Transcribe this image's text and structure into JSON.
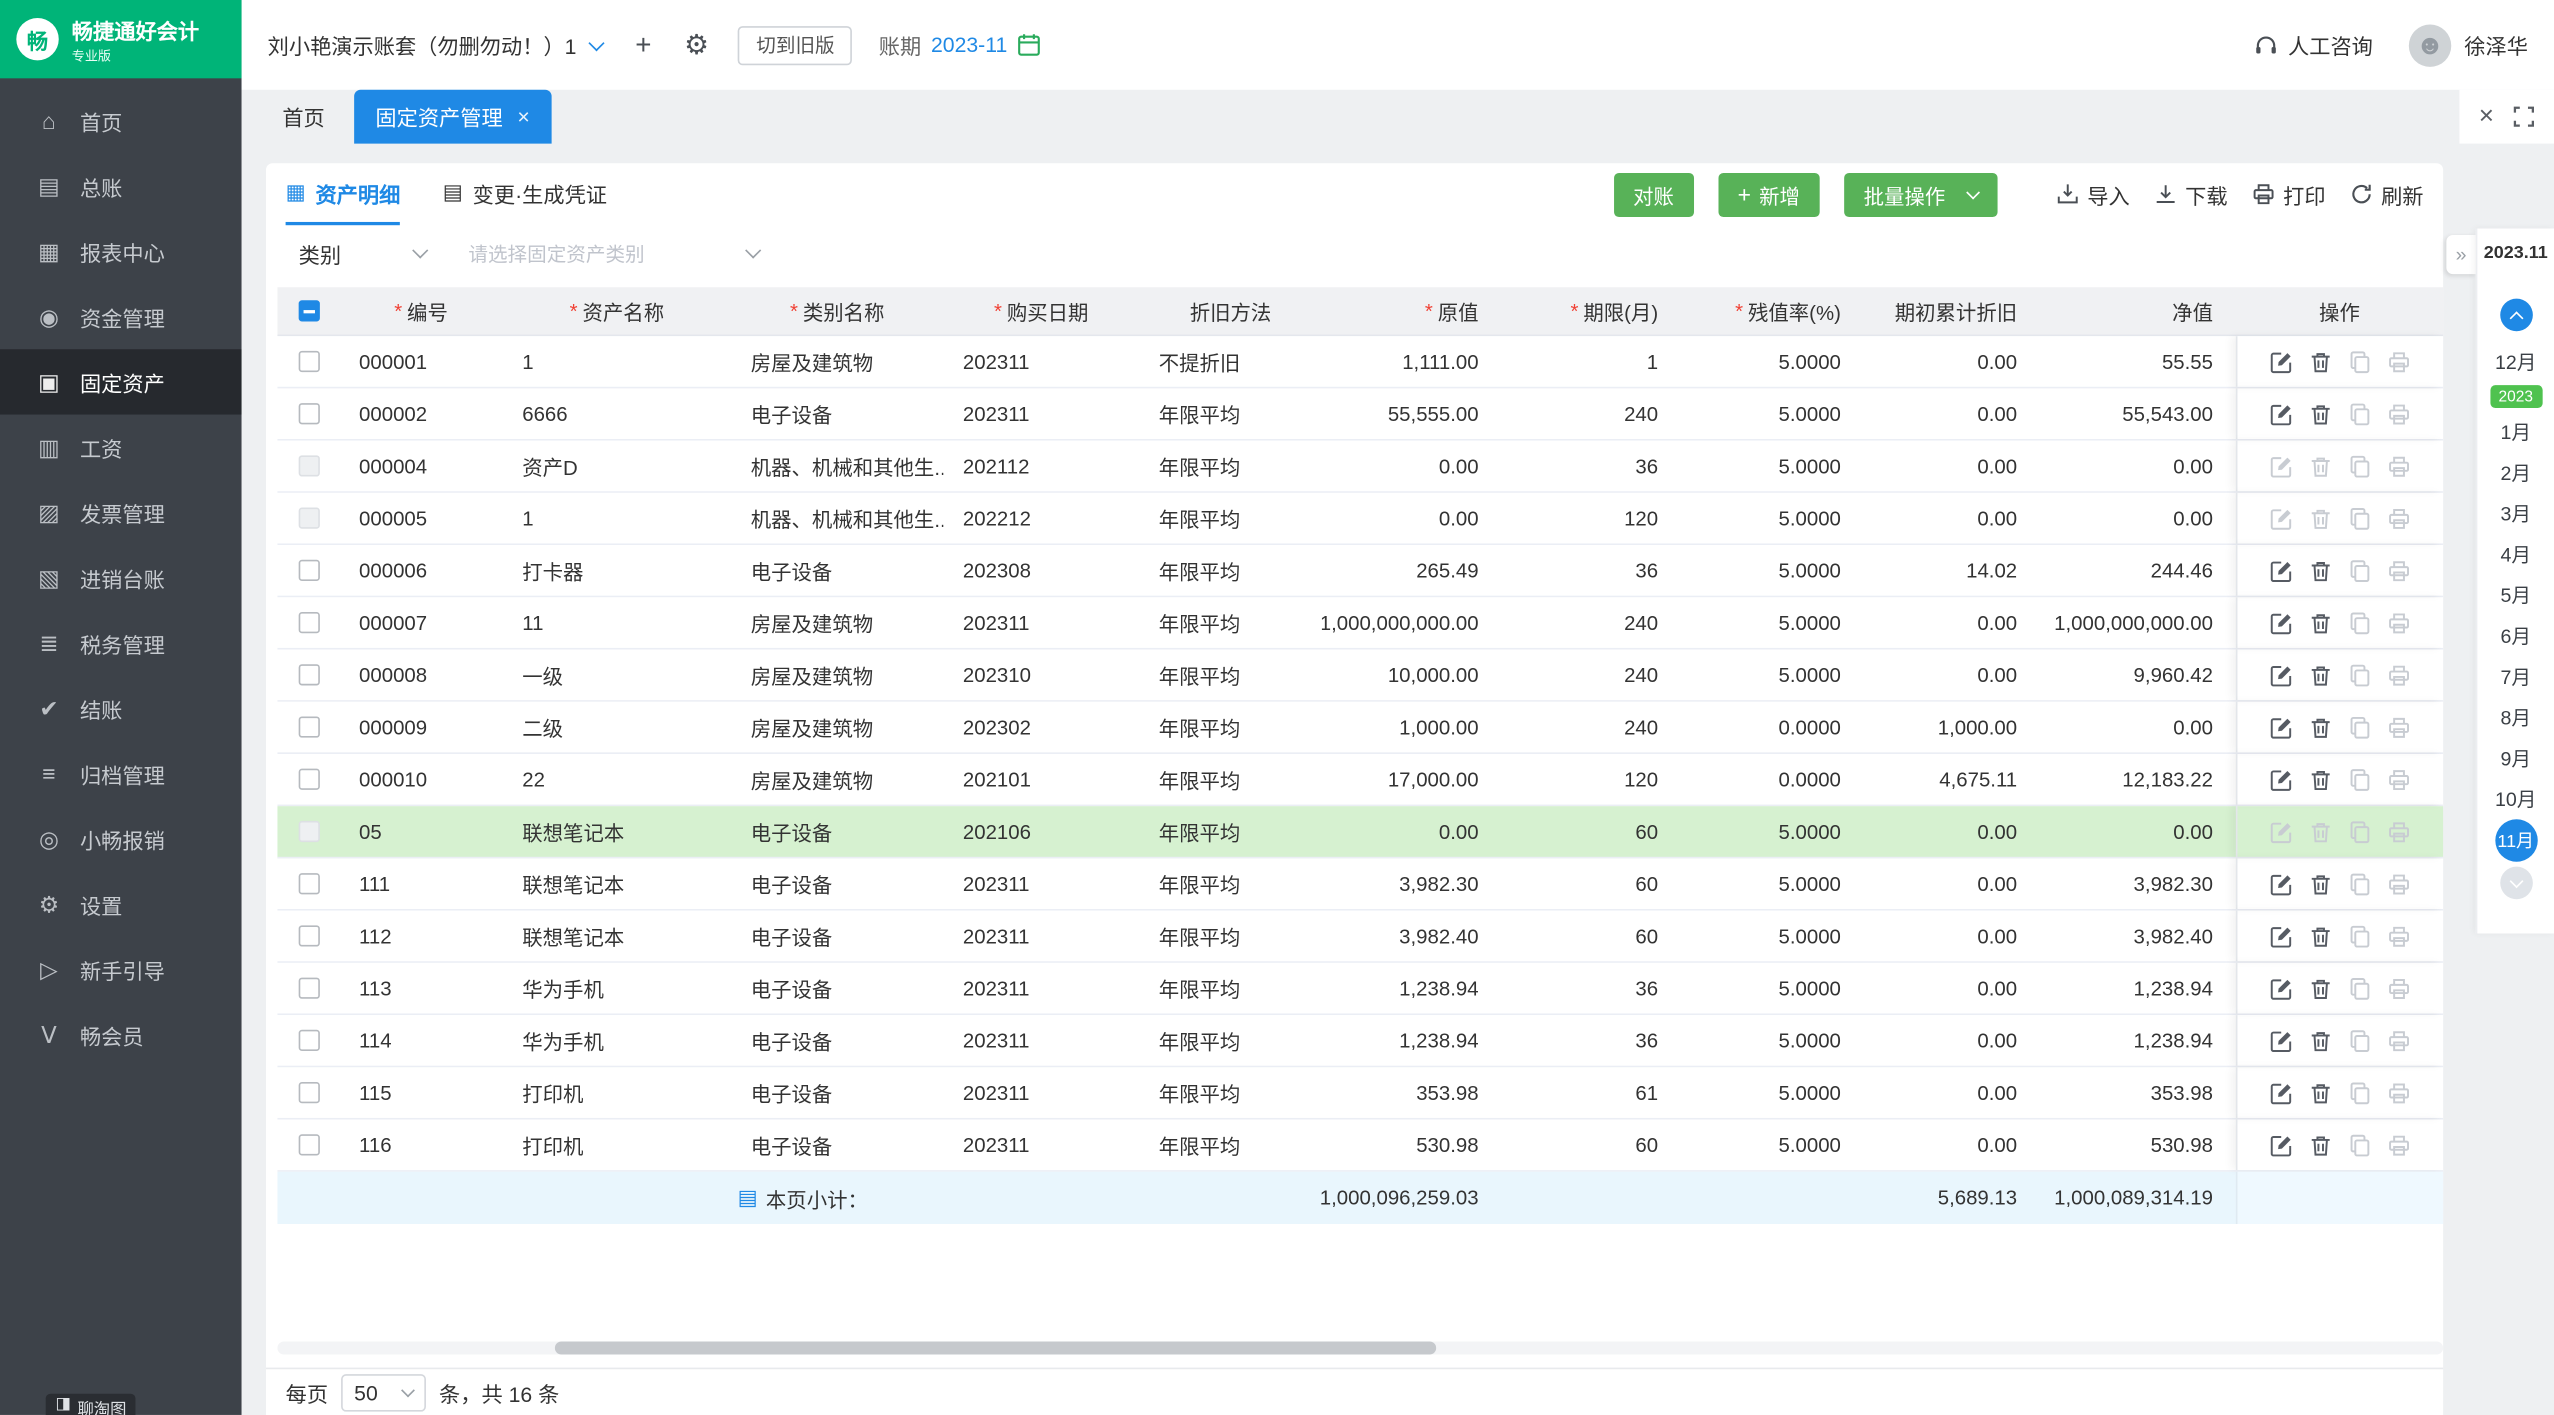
{
  "colors": {
    "brand_green": "#00b478",
    "button_green": "#58b258",
    "accent_blue": "#1f89e5",
    "highlight_row_green": "#d6f1d0",
    "summary_row_blue": "#e9f6fd",
    "required_red": "#f04134"
  },
  "app": {
    "logo_title": "畅捷通好会计",
    "logo_subtitle": "专业版",
    "footer_widget": "聊淘图"
  },
  "sidebar": {
    "items": [
      {
        "label": "首页",
        "icon": "home",
        "active": false
      },
      {
        "label": "总账",
        "icon": "ledger",
        "active": false
      },
      {
        "label": "报表中心",
        "icon": "report",
        "active": false
      },
      {
        "label": "资金管理",
        "icon": "fund",
        "active": false
      },
      {
        "label": "固定资产",
        "icon": "asset",
        "active": true
      },
      {
        "label": "工资",
        "icon": "salary",
        "active": false
      },
      {
        "label": "发票管理",
        "icon": "invoice",
        "active": false
      },
      {
        "label": "进销台账",
        "icon": "purchase",
        "active": false
      },
      {
        "label": "税务管理",
        "icon": "tax",
        "active": false
      },
      {
        "label": "结账",
        "icon": "closing",
        "active": false
      },
      {
        "label": "归档管理",
        "icon": "archive",
        "active": false
      },
      {
        "label": "小畅报销",
        "icon": "expense",
        "active": false
      },
      {
        "label": "设置",
        "icon": "settings",
        "active": false
      },
      {
        "label": "新手引导",
        "icon": "guide",
        "active": false
      },
      {
        "label": "畅会员",
        "icon": "member",
        "active": false
      }
    ]
  },
  "topbar": {
    "account_set": "刘小艳演示账套（勿删勿动！）1",
    "switch_old_label": "切到旧版",
    "period_label": "账期",
    "period_value": "2023-11",
    "consult_label": "人工咨询",
    "username": "徐泽华"
  },
  "tabbar": {
    "home_tab": "首页",
    "active_tab": "固定资产管理"
  },
  "toolbar": {
    "subtab_detail": "资产明细",
    "subtab_change": "变更·生成凭证",
    "reconcile": "对账",
    "add": "新增",
    "batch": "批量操作",
    "import": "导入",
    "download": "下载",
    "print": "打印",
    "refresh": "刷新"
  },
  "filter": {
    "category_label": "类别",
    "category_placeholder": "请选择固定资产类别"
  },
  "table": {
    "headers": [
      {
        "label": "编号",
        "required": true
      },
      {
        "label": "资产名称",
        "required": true
      },
      {
        "label": "类别名称",
        "required": true
      },
      {
        "label": "购买日期",
        "required": true
      },
      {
        "label": "折旧方法",
        "required": false
      },
      {
        "label": "原值",
        "required": true
      },
      {
        "label": "期限(月)",
        "required": true
      },
      {
        "label": "残值率(%)",
        "required": true
      },
      {
        "label": "期初累计折旧",
        "required": false
      },
      {
        "label": "净值",
        "required": false
      },
      {
        "label": "操作",
        "required": false
      }
    ],
    "actions": [
      "edit",
      "delete",
      "copy",
      "print"
    ],
    "rows": [
      {
        "code": "000001",
        "name": "1",
        "category": "房屋及建筑物",
        "date": "202311",
        "method": "不提折旧",
        "original": "1,111.00",
        "months": "1",
        "residual": "5.0000",
        "initial": "0.00",
        "net": "55.55",
        "disabled": false,
        "highlight": false
      },
      {
        "code": "000002",
        "name": "6666",
        "category": "电子设备",
        "date": "202311",
        "method": "年限平均",
        "original": "55,555.00",
        "months": "240",
        "residual": "5.0000",
        "initial": "0.00",
        "net": "55,543.00",
        "disabled": false,
        "highlight": false
      },
      {
        "code": "000004",
        "name": "资产D",
        "category": "机器、机械和其他生...",
        "date": "202112",
        "method": "年限平均",
        "original": "0.00",
        "months": "36",
        "residual": "5.0000",
        "initial": "0.00",
        "net": "0.00",
        "disabled": true,
        "highlight": false
      },
      {
        "code": "000005",
        "name": "1",
        "category": "机器、机械和其他生...",
        "date": "202212",
        "method": "年限平均",
        "original": "0.00",
        "months": "120",
        "residual": "5.0000",
        "initial": "0.00",
        "net": "0.00",
        "disabled": true,
        "highlight": false
      },
      {
        "code": "000006",
        "name": "打卡器",
        "category": "电子设备",
        "date": "202308",
        "method": "年限平均",
        "original": "265.49",
        "months": "36",
        "residual": "5.0000",
        "initial": "14.02",
        "net": "244.46",
        "disabled": false,
        "highlight": false
      },
      {
        "code": "000007",
        "name": "11",
        "category": "房屋及建筑物",
        "date": "202311",
        "method": "年限平均",
        "original": "1,000,000,000.00",
        "months": "240",
        "residual": "5.0000",
        "initial": "0.00",
        "net": "1,000,000,000.00",
        "disabled": false,
        "highlight": false
      },
      {
        "code": "000008",
        "name": "一级",
        "category": "房屋及建筑物",
        "date": "202310",
        "method": "年限平均",
        "original": "10,000.00",
        "months": "240",
        "residual": "5.0000",
        "initial": "0.00",
        "net": "9,960.42",
        "disabled": false,
        "highlight": false
      },
      {
        "code": "000009",
        "name": "二级",
        "category": "房屋及建筑物",
        "date": "202302",
        "method": "年限平均",
        "original": "1,000.00",
        "months": "240",
        "residual": "0.0000",
        "initial": "1,000.00",
        "net": "0.00",
        "disabled": false,
        "highlight": false
      },
      {
        "code": "000010",
        "name": "22",
        "category": "房屋及建筑物",
        "date": "202101",
        "method": "年限平均",
        "original": "17,000.00",
        "months": "120",
        "residual": "0.0000",
        "initial": "4,675.11",
        "net": "12,183.22",
        "disabled": false,
        "highlight": false
      },
      {
        "code": "05",
        "name": "联想笔记本",
        "category": "电子设备",
        "date": "202106",
        "method": "年限平均",
        "original": "0.00",
        "months": "60",
        "residual": "5.0000",
        "initial": "0.00",
        "net": "0.00",
        "disabled": true,
        "highlight": true
      },
      {
        "code": "111",
        "name": "联想笔记本",
        "category": "电子设备",
        "date": "202311",
        "method": "年限平均",
        "original": "3,982.30",
        "months": "60",
        "residual": "5.0000",
        "initial": "0.00",
        "net": "3,982.30",
        "disabled": false,
        "highlight": false
      },
      {
        "code": "112",
        "name": "联想笔记本",
        "category": "电子设备",
        "date": "202311",
        "method": "年限平均",
        "original": "3,982.40",
        "months": "60",
        "residual": "5.0000",
        "initial": "0.00",
        "net": "3,982.40",
        "disabled": false,
        "highlight": false
      },
      {
        "code": "113",
        "name": "华为手机",
        "category": "电子设备",
        "date": "202311",
        "method": "年限平均",
        "original": "1,238.94",
        "months": "36",
        "residual": "5.0000",
        "initial": "0.00",
        "net": "1,238.94",
        "disabled": false,
        "highlight": false
      },
      {
        "code": "114",
        "name": "华为手机",
        "category": "电子设备",
        "date": "202311",
        "method": "年限平均",
        "original": "1,238.94",
        "months": "36",
        "residual": "5.0000",
        "initial": "0.00",
        "net": "1,238.94",
        "disabled": false,
        "highlight": false
      },
      {
        "code": "115",
        "name": "打印机",
        "category": "电子设备",
        "date": "202311",
        "method": "年限平均",
        "original": "353.98",
        "months": "61",
        "residual": "5.0000",
        "initial": "0.00",
        "net": "353.98",
        "disabled": false,
        "highlight": false
      },
      {
        "code": "116",
        "name": "打印机",
        "category": "电子设备",
        "date": "202311",
        "method": "年限平均",
        "original": "530.98",
        "months": "60",
        "residual": "5.0000",
        "initial": "0.00",
        "net": "530.98",
        "disabled": false,
        "highlight": false
      }
    ],
    "summary": {
      "label": "本页小计：",
      "original_value": "1,000,096,259.03",
      "initial_depreciation": "5,689.13",
      "net_value": "1,000,089,314.19"
    }
  },
  "pagination": {
    "per_page_label": "每页",
    "per_page_value": "50",
    "total_label": "条，共 16 条"
  },
  "calendar": {
    "collapse_icon": "»",
    "title": "2023.11",
    "year_badge": "2023",
    "months": [
      "12月",
      "1月",
      "2月",
      "3月",
      "4月",
      "5月",
      "6月",
      "7月",
      "8月",
      "9月",
      "10月",
      "11月"
    ],
    "active_month": "11月"
  }
}
